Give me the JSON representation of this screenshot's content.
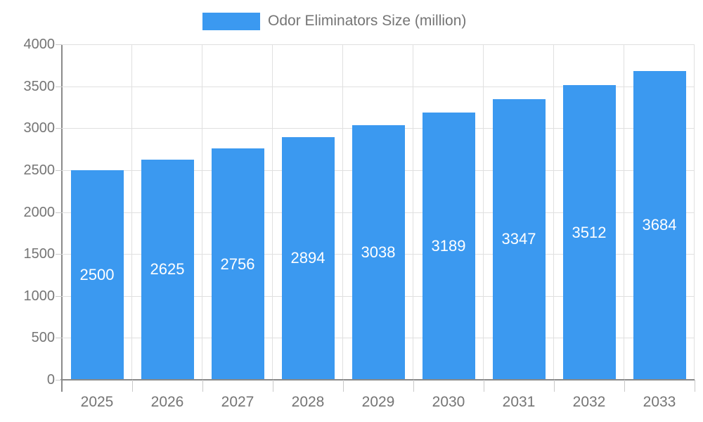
{
  "chart_data": {
    "type": "bar",
    "title": "",
    "legend": "Odor Eliminators Size (million)",
    "legend_position": "top-center",
    "categories": [
      "2025",
      "2026",
      "2027",
      "2028",
      "2029",
      "2030",
      "2031",
      "2032",
      "2033"
    ],
    "values": [
      2500,
      2625,
      2756,
      2894,
      3038,
      3189,
      3347,
      3512,
      3684
    ],
    "xlabel": "",
    "ylabel": "",
    "ylim": [
      0,
      4000
    ],
    "yticks": [
      0,
      500,
      1000,
      1500,
      2000,
      2500,
      3000,
      3500,
      4000
    ],
    "grid": true,
    "bar_color": "#3b99f0",
    "value_label_color": "#ffffff",
    "axis_text_color": "#757575",
    "grid_color": "#e0e0e0",
    "axis_line_color": "#8a8a8a"
  }
}
